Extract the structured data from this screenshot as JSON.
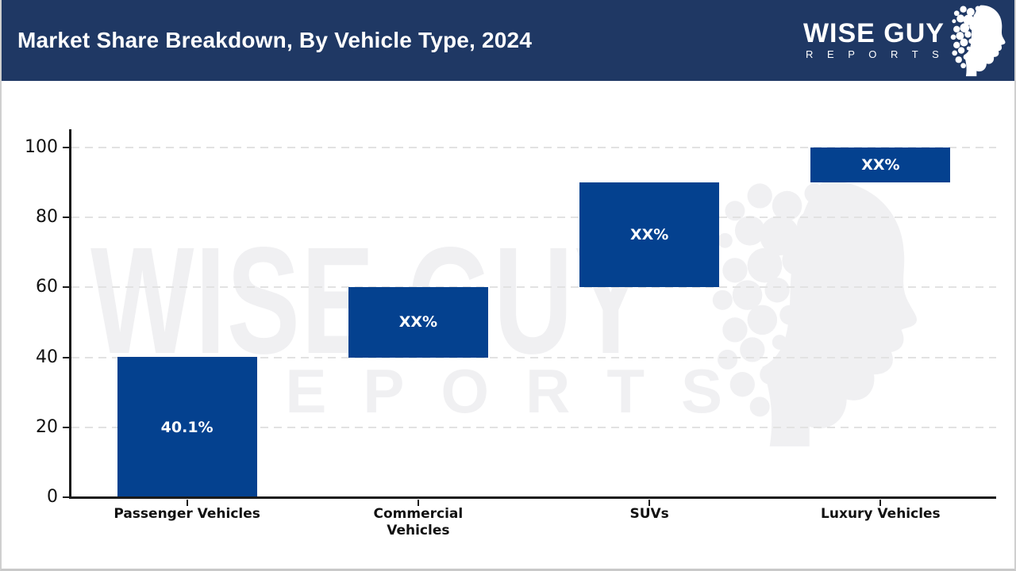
{
  "header": {
    "title": "Market Share Breakdown, By Vehicle Type, 2024",
    "logo": {
      "wordmark": "WISE GUY",
      "subtext": "R E P O R T S"
    }
  },
  "watermark": {
    "wordmark": "WISE GUY",
    "subtext": "REPORTS"
  },
  "chart_data": {
    "type": "bar",
    "variant": "waterfall",
    "title": "Market Share Breakdown, By Vehicle Type, 2024",
    "categories": [
      "Passenger Vehicles",
      "Commercial\nVehicles",
      "SUVs",
      "Luxury Vehicles"
    ],
    "segments": [
      {
        "category": "Passenger Vehicles",
        "start": 0,
        "end": 40.1,
        "label": "40.1%"
      },
      {
        "category": "Commercial Vehicles",
        "start": 40,
        "end": 60,
        "label": "XX%"
      },
      {
        "category": "SUVs",
        "start": 60,
        "end": 90,
        "label": "XX%"
      },
      {
        "category": "Luxury Vehicles",
        "start": 90,
        "end": 100,
        "label": "XX%"
      }
    ],
    "yticks": [
      0,
      20,
      40,
      60,
      80,
      100
    ],
    "ylim": [
      0,
      105
    ],
    "xlabel": "",
    "ylabel": "",
    "legend": "none",
    "grid": "horizontal-dashed",
    "colors": {
      "bar": "#04418f",
      "header_bg": "#1f3864",
      "grid": "#e2e2e2",
      "axis": "#1a1a1a",
      "watermark": "#f0f0f2",
      "title_text": "#ffffff"
    }
  }
}
